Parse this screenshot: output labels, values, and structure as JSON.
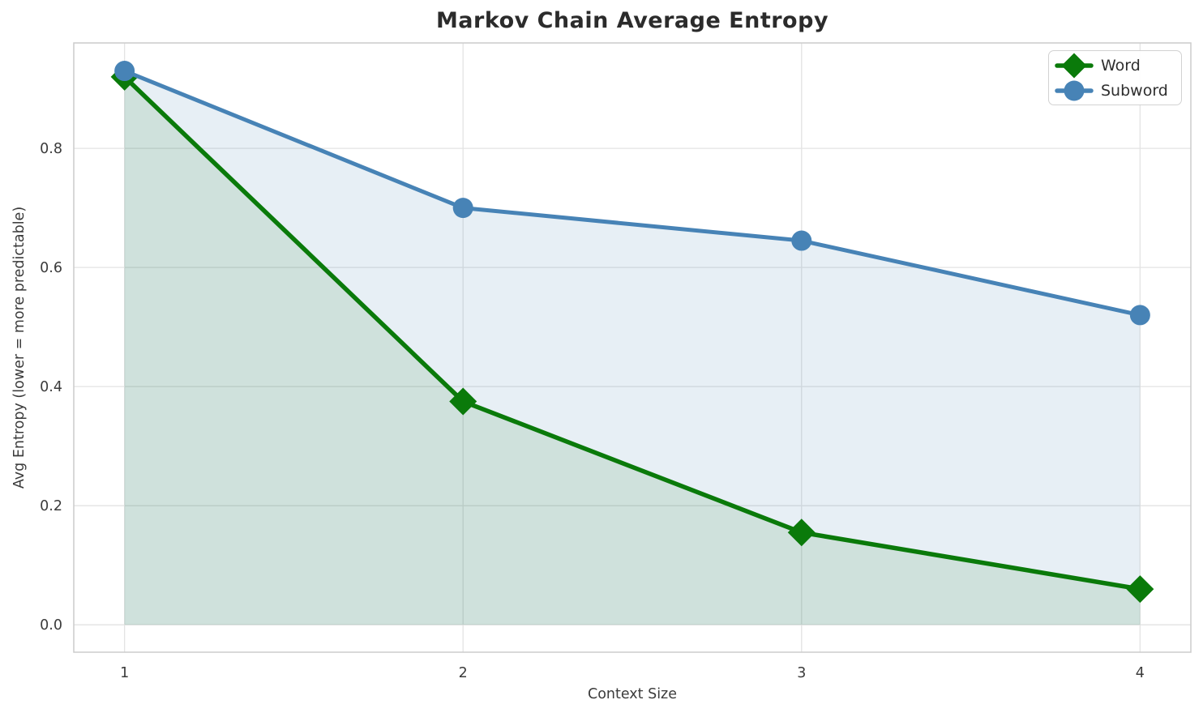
{
  "chart_data": {
    "type": "line",
    "title": "Markov Chain Average Entropy",
    "xlabel": "Context Size",
    "ylabel": "Avg Entropy (lower = more predictable)",
    "x": [
      1,
      2,
      3,
      4
    ],
    "xlim": [
      0.85,
      4.15
    ],
    "ylim": [
      -0.046,
      0.977
    ],
    "xticks": [
      1,
      2,
      3,
      4
    ],
    "xtick_labels": [
      "1",
      "2",
      "3",
      "4"
    ],
    "yticks": [
      0,
      0.2,
      0.4,
      0.6,
      0.8
    ],
    "ytick_labels": [
      "0.0",
      "0.2",
      "0.4",
      "0.6",
      "0.8"
    ],
    "grid": true,
    "legend_position": "upper right",
    "series": [
      {
        "name": "Word",
        "marker": "diamond",
        "line_color": "#0a7a0a",
        "fill_color": "rgba(0,110,0,0.10)",
        "line_width": 5.5,
        "values": [
          0.92,
          0.375,
          0.155,
          0.06
        ]
      },
      {
        "name": "Subword",
        "marker": "circle",
        "line_color": "#4783b6",
        "fill_color": "rgba(70,130,180,0.13)",
        "line_width": 5,
        "values": [
          0.93,
          0.7,
          0.645,
          0.52
        ]
      }
    ],
    "style": {
      "grid_color": "#e3e3e3",
      "spine_color": "#cccccc",
      "tick_label_color": "#3b3b3b",
      "background": "#ffffff"
    }
  }
}
